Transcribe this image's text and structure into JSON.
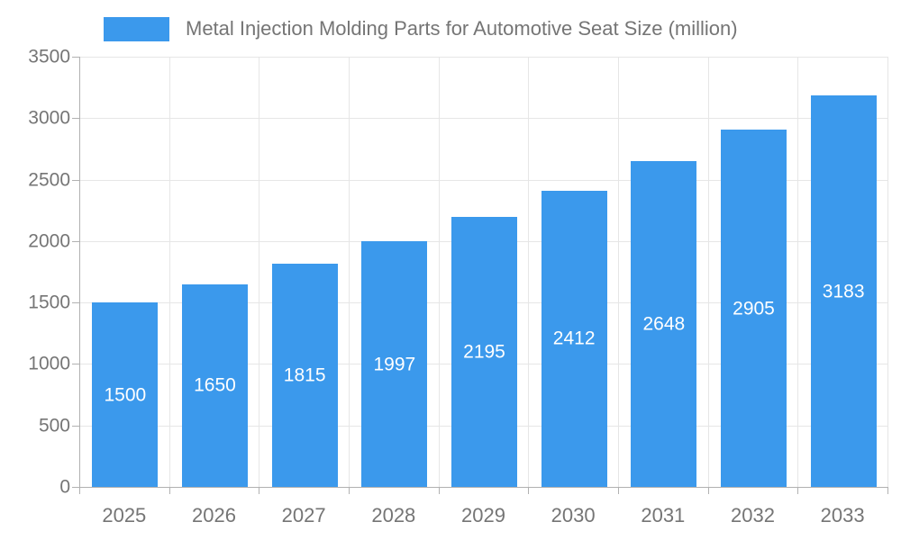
{
  "chart_data": {
    "type": "bar",
    "title": "Metal Injection Molding Parts for Automotive Seat Size (million)",
    "categories": [
      "2025",
      "2026",
      "2027",
      "2028",
      "2029",
      "2030",
      "2031",
      "2032",
      "2033"
    ],
    "values": [
      1500,
      1650,
      1815,
      1997,
      2195,
      2412,
      2648,
      2905,
      3183
    ],
    "xlabel": "",
    "ylabel": "",
    "ylim": [
      0,
      3500
    ],
    "ytick_step": 500,
    "yticks": [
      "0",
      "500",
      "1000",
      "1500",
      "2000",
      "2500",
      "3000",
      "3500"
    ],
    "grid": true,
    "legend_position": "top-left",
    "value_labels": "inside-center",
    "colors": {
      "bar": "#3B99EC",
      "bar_value_text": "#FFFFFF",
      "axis_text": "#757575",
      "grid_line": "#E6E6E6",
      "axis_line": "#B1B1B1",
      "background": "#FFFFFF"
    }
  }
}
